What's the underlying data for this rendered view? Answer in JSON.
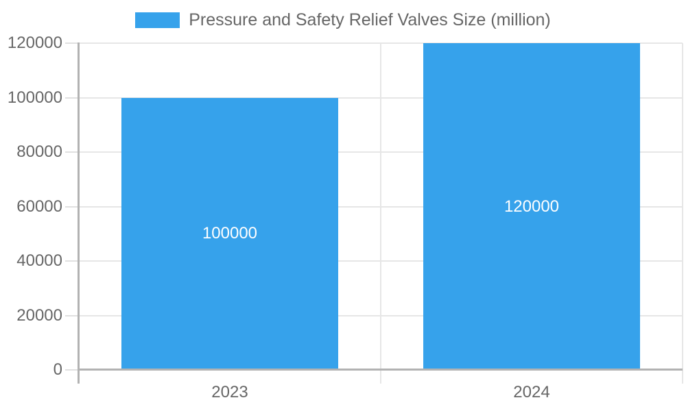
{
  "chart_data": {
    "type": "bar",
    "title": "Pressure and Safety Relief Valves Size (million)",
    "categories": [
      "2023",
      "2024"
    ],
    "series": [
      {
        "name": "Pressure and Safety Relief Valves Size (million)",
        "values": [
          100000,
          120000
        ]
      }
    ],
    "bar_value_labels": [
      "100000",
      "120000"
    ],
    "xlabel": "",
    "ylabel": "",
    "ylim": [
      0,
      120000
    ],
    "ytick_interval": 20000,
    "yticks": [
      "0",
      "20000",
      "40000",
      "60000",
      "80000",
      "100000",
      "120000"
    ],
    "legend_position": "top",
    "grid": true,
    "colors": {
      "bar": "#36A2EB",
      "gridline": "#E6E6E6",
      "axis_line": "#B2B2B2",
      "axis_text": "#666666",
      "value_label": "#FFFFFF",
      "background": "#FFFFFF"
    }
  }
}
